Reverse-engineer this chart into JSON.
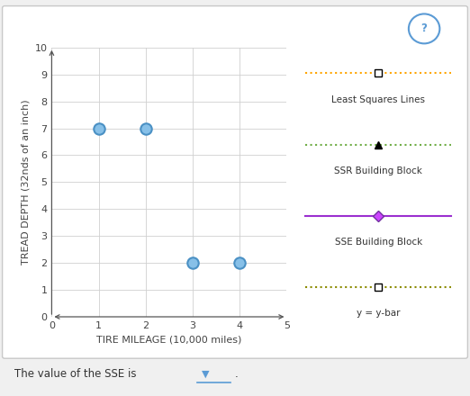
{
  "scatter_x": [
    1,
    2,
    3,
    4
  ],
  "scatter_y": [
    7,
    7,
    2,
    2
  ],
  "scatter_color": "#87c0e8",
  "scatter_edge_color": "#4a90c4",
  "scatter_size": 80,
  "xlim": [
    0,
    5
  ],
  "ylim": [
    0,
    10
  ],
  "xticks": [
    0,
    1,
    2,
    3,
    4,
    5
  ],
  "yticks": [
    0,
    1,
    2,
    3,
    4,
    5,
    6,
    7,
    8,
    9,
    10
  ],
  "xlabel": "TIRE MILEAGE (10,000 miles)",
  "ylabel": "TREAD DEPTH (32nds of an inch)",
  "grid_color": "#d0d0d0",
  "bg_color": "#ffffff",
  "outer_bg": "#f0f0f0",
  "question_circle_color": "#5b9bd5",
  "bottom_text": "The value of the SSE is",
  "label_fontsize": 8,
  "tick_fontsize": 8,
  "leg1_label": "Least Squares Lines",
  "leg1_line_color": "#ffa500",
  "leg1_marker": "s",
  "leg1_marker_face": "white",
  "leg1_marker_edge": "black",
  "leg2_label": "SSR Building Block",
  "leg2_line_color": "#70ad47",
  "leg2_marker": "^",
  "leg2_marker_face": "black",
  "leg2_marker_edge": "black",
  "leg3_label": "SSE Building Block",
  "leg3_line_color": "#9b30d0",
  "leg3_marker": "D",
  "leg3_marker_face": "#cc44ff",
  "leg3_marker_edge": "#7030a0",
  "leg4_label": "y = y-bar",
  "leg4_line_color": "#8b8b00",
  "leg4_marker": "s",
  "leg4_marker_face": "white",
  "leg4_marker_edge": "black"
}
